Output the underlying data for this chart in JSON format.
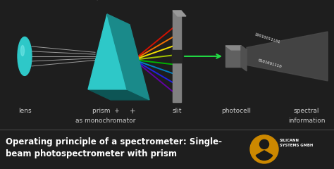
{
  "bg_dark": "#1e1e1e",
  "bg_diagram": "#252525",
  "bg_caption": "#161616",
  "lens_color": "#2ec8c8",
  "lens_highlight": "#7aeaea",
  "prism_front_color": "#2ec8c8",
  "prism_right_color": "#1a8a8a",
  "prism_bottom_color": "#0d5555",
  "slit_plate_color": "#808080",
  "photocell_color": "#606060",
  "photocell_face_color": "#707070",
  "spectral_cone_color": "#4a4a4a",
  "green_beam": "#22dd44",
  "beam_color": "#bbbbbb",
  "text_color": "#cccccc",
  "caption_text_line1": "Operating principle of a spectrometer: Single-",
  "caption_text_line2": "beam photospectrometer with prism",
  "label_lens": "lens",
  "label_prism": "prism  +",
  "label_slit": "slit",
  "label_mono": "as monochromator",
  "label_photocell": "photocell",
  "label_spectral_1": "spectral",
  "label_spectral_2": "information",
  "binary_line1": "10010011101",
  "logo_color": "#cc8800",
  "logo_text": "SILICANN\nSYSTEMS GMBH",
  "caption_fontsize": 8.5,
  "label_fontsize": 6.5
}
